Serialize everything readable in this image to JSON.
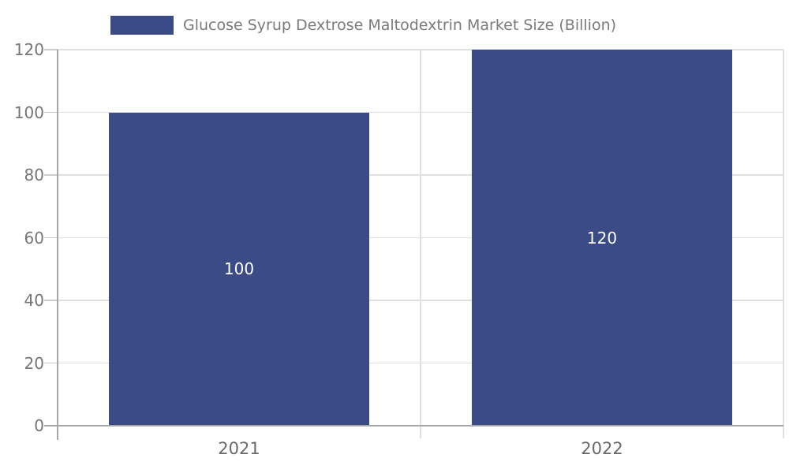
{
  "legend": {
    "label": "Glucose Syrup Dextrose Maltodextrin Market Size (Billion)"
  },
  "chart_data": {
    "type": "bar",
    "title": "",
    "xlabel": "",
    "ylabel": "",
    "categories": [
      "2021",
      "2022"
    ],
    "values": [
      100,
      120
    ],
    "bar_value_labels": [
      "100",
      "120"
    ],
    "series": [
      {
        "name": "Glucose Syrup Dextrose Maltodextrin Market Size (Billion)",
        "values": [
          100,
          120
        ]
      }
    ],
    "ylim": [
      0,
      120
    ],
    "yticks": [
      0,
      20,
      40,
      60,
      80,
      100,
      120
    ],
    "grid": true,
    "legend_position": "top",
    "colors": {
      "bar": "#3a4b85",
      "grid": "#e0e0e0",
      "axis": "#a6a6a6",
      "tick": "#cccccc",
      "y_label": "#757575",
      "x_label": "#696969",
      "legend_text": "#7a7a7a",
      "value_label": "#ffffff",
      "background": "#ffffff"
    }
  }
}
